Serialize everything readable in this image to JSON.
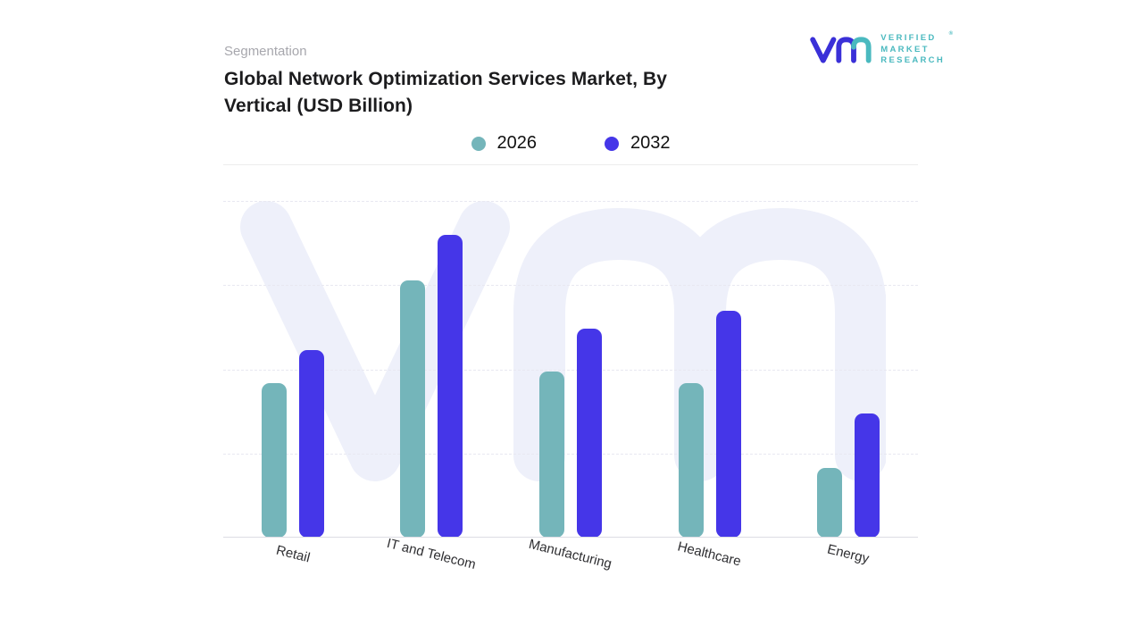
{
  "branding": {
    "company_lines": [
      "VERIFIED",
      "MARKET",
      "RESEARCH"
    ],
    "registered": "®",
    "mark_indigo": "#3a30d8",
    "mark_teal": "#4ab9bf"
  },
  "header": {
    "eyebrow": "Segmentation",
    "title": "Global Network Optimization Services Market, By Vertical (USD Billion)"
  },
  "chart_data": {
    "type": "bar",
    "title": "Global Network Optimization Services Market, By Vertical (USD Billion)",
    "categories": [
      "Retail",
      "IT and Telecom",
      "Manufacturing",
      "Healthcare",
      "Energy"
    ],
    "series": [
      {
        "name": "2026",
        "color": "#74b5ba",
        "values": [
          51,
          85,
          55,
          51,
          23
        ]
      },
      {
        "name": "2032",
        "color": "#4536e8",
        "values": [
          62,
          100,
          69,
          75,
          41
        ]
      }
    ],
    "xlabel": "",
    "ylabel": "",
    "ylim": [
      0,
      100
    ],
    "grid": "horizontal-dashed",
    "legend_position": "top-center",
    "y_axis_tick_labels_visible": false
  },
  "watermark": {
    "text": "vm",
    "color": "#eef0fa"
  }
}
